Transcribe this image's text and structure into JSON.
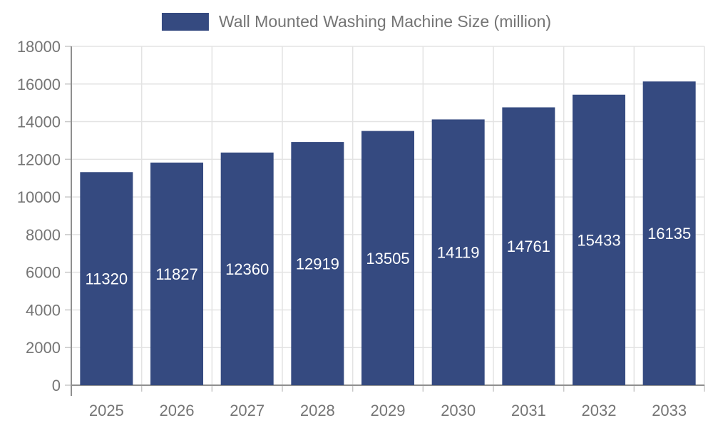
{
  "legend": {
    "label": "Wall Mounted Washing Machine Size (million)"
  },
  "colors": {
    "bar": "#354A80",
    "axis": "#8f8f8f",
    "grid": "#e3e3e3",
    "tick": "#c8c8c8",
    "label_text": "#757575",
    "value_text": "#ffffff",
    "background": "#ffffff"
  },
  "chart_data": {
    "type": "bar",
    "title": "Wall Mounted Washing Machine Size (million)",
    "categories": [
      "2025",
      "2026",
      "2027",
      "2028",
      "2029",
      "2030",
      "2031",
      "2032",
      "2033"
    ],
    "values": [
      11320,
      11827,
      12360,
      12919,
      13505,
      14119,
      14761,
      15433,
      16135
    ],
    "series_name": "Wall Mounted Washing Machine Size (million)",
    "xlabel": "",
    "ylabel": "",
    "ylim": [
      0,
      18000
    ],
    "ytick_step": 2000,
    "grid": true,
    "legend_position": "top",
    "bar_labels": "centered inside bars"
  }
}
